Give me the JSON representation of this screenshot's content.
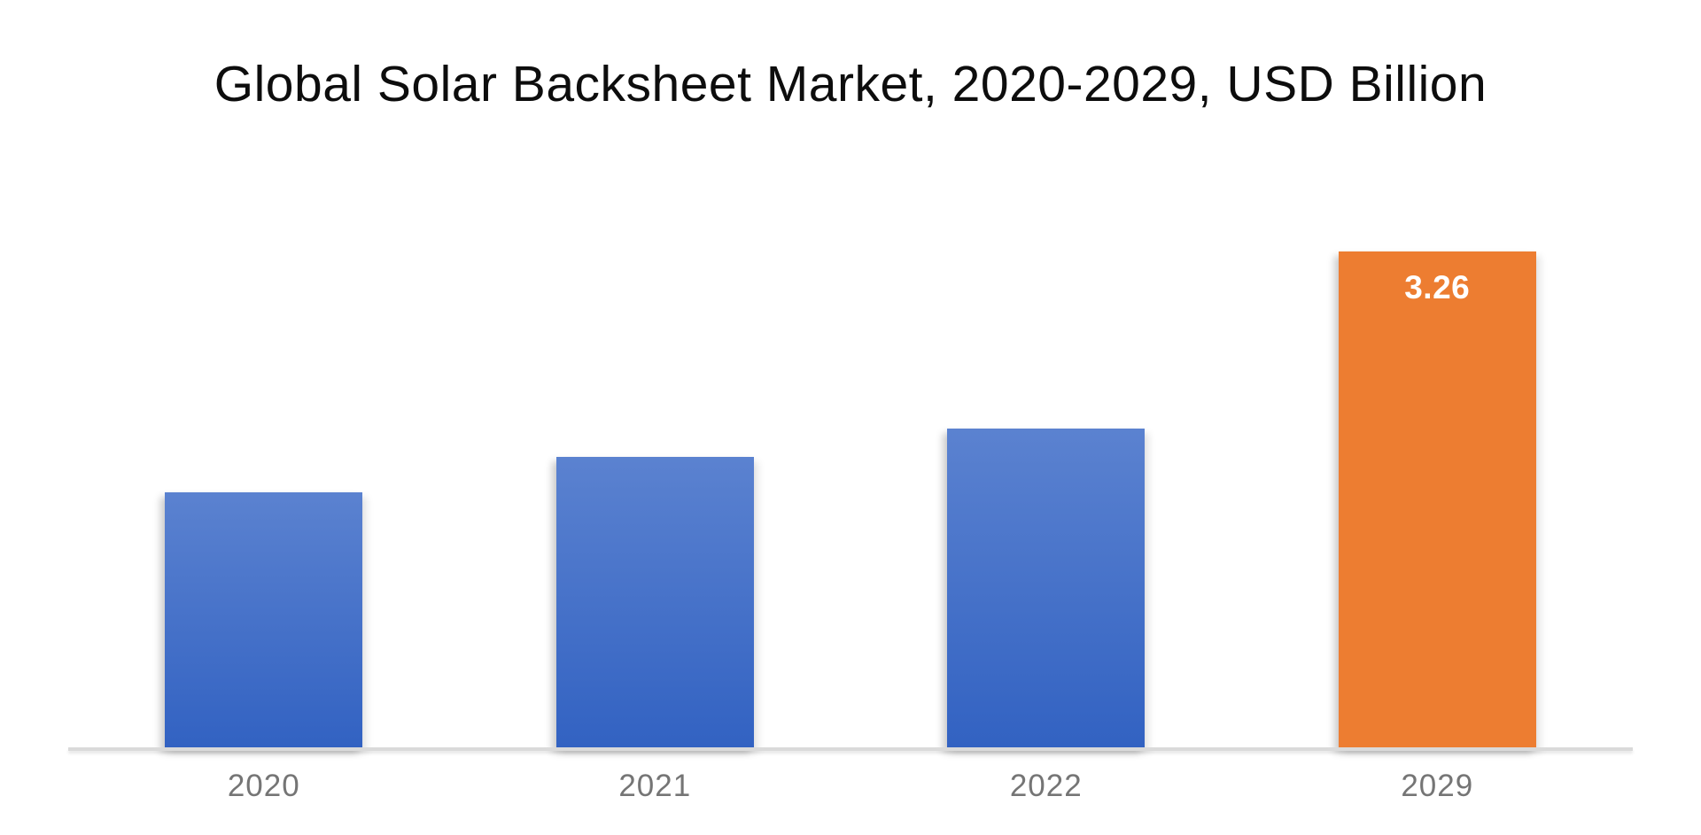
{
  "title": "Global Solar Backsheet Market, 2020-2029, USD Billion",
  "chart_data": {
    "type": "bar",
    "title": "Global Solar Backsheet Market, 2020-2029, USD Billion",
    "categories": [
      "2020",
      "2021",
      "2022",
      "2029"
    ],
    "values": [
      1.68,
      1.91,
      2.1,
      3.26
    ],
    "bar_labels": [
      "",
      "",
      "",
      "3.26"
    ],
    "unit": "USD Billion",
    "xlabel": "",
    "ylabel": "",
    "ylim": [
      0,
      3.26
    ],
    "grid": false,
    "legend": false,
    "highlight_index": 3,
    "colors": {
      "bar_gradient_top": "#5b82d0",
      "bar_gradient_bottom": "#3262c2",
      "highlight_bar": "#ED7D31",
      "bar_label_text": "#FFFFFF",
      "axis_line": "#DADADA",
      "tick_label": "#757575",
      "title_text": "#0D0D0D",
      "background": "#FFFFFF"
    }
  }
}
